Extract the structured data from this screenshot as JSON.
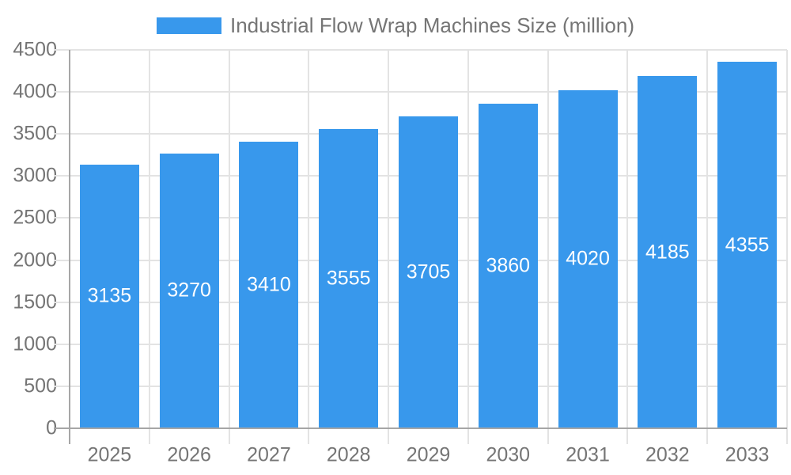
{
  "legend": {
    "label": "Industrial Flow Wrap Machines Size (million)"
  },
  "chart_data": {
    "type": "bar",
    "title": "Industrial Flow Wrap Machines Size (million)",
    "categories": [
      "2025",
      "2026",
      "2027",
      "2028",
      "2029",
      "2030",
      "2031",
      "2032",
      "2033"
    ],
    "values": [
      3135,
      3270,
      3410,
      3555,
      3705,
      3860,
      4020,
      4185,
      4355
    ],
    "value_labels": [
      "3135",
      "3270",
      "3410",
      "3555",
      "3705",
      "3860",
      "4020",
      "4185",
      "4355"
    ],
    "xlabel": "",
    "ylabel": "",
    "ylim": [
      0,
      4500
    ],
    "ytick_step": 500,
    "yticks": [
      "0",
      "500",
      "1000",
      "1500",
      "2000",
      "2500",
      "3000",
      "3500",
      "4000",
      "4500"
    ],
    "grid": "on",
    "legend_position": "top-center",
    "value_label_position": "inside-middle",
    "colors": {
      "bar": "#3898ec",
      "value_label": "#ffffff",
      "grid_line": "#e3e3e3",
      "axis_line": "#a6a6a6",
      "tick_label": "#757575",
      "legend_text": "#757575",
      "background": "#ffffff"
    }
  }
}
